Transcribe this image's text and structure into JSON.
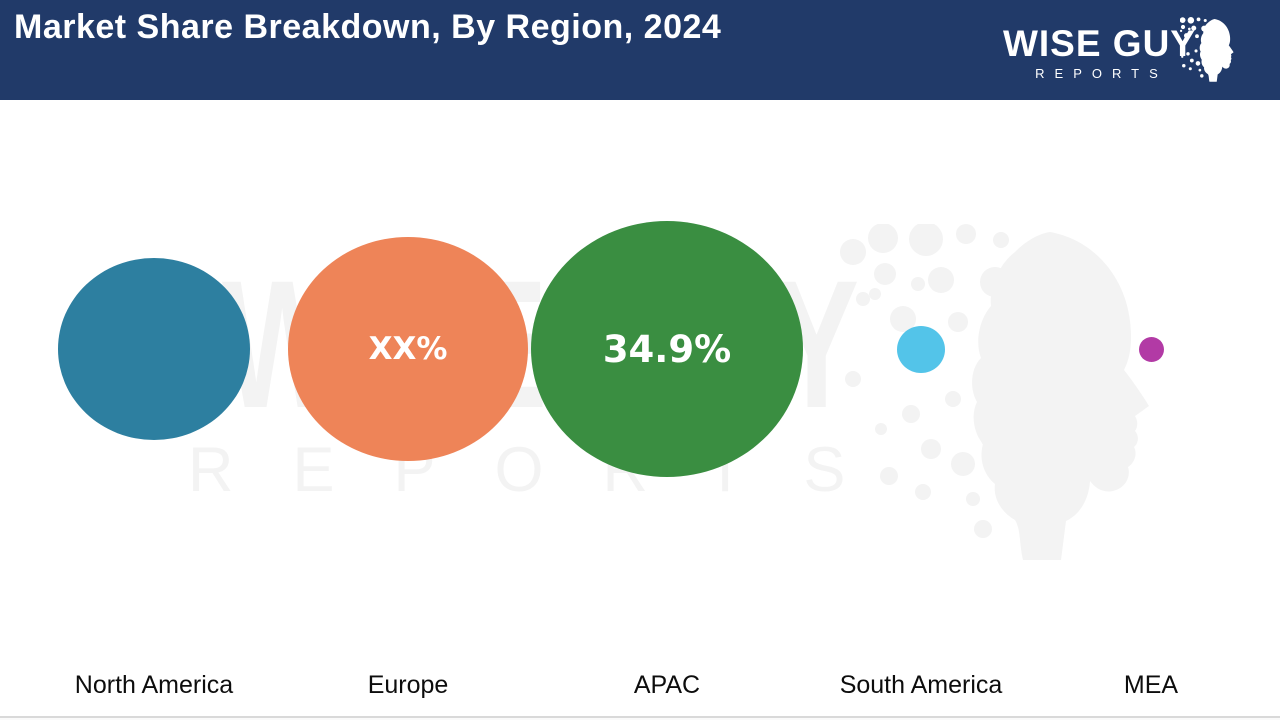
{
  "header": {
    "title": "Market Share Breakdown, By Region, 2024",
    "bg_color": "#213a69",
    "logo": {
      "name": "WISE GUY",
      "subname": "REPORTS",
      "icon": "head-profile-dots-icon",
      "color": "#ffffff"
    }
  },
  "watermark": {
    "text1": "WISE GUY",
    "text2": "REPORTS",
    "icon": "head-profile-dots-watermark",
    "color": "#f3f3f3"
  },
  "chart_data": {
    "type": "bubble",
    "title": "Market Share Breakdown, By Region, 2024",
    "categories": [
      "North America",
      "Europe",
      "APAC",
      "South America",
      "MEA"
    ],
    "series": [
      {
        "name": "Market Share",
        "values": [
          null,
          null,
          34.9,
          null,
          null
        ],
        "point_labels": [
          "",
          "XX%",
          "34.9%",
          "",
          ""
        ]
      }
    ],
    "colors": [
      "#2d7fa0",
      "#ee8458",
      "#3a8e41",
      "#53c4e9",
      "#b23aa5"
    ],
    "legend": "none",
    "grid": false,
    "layout": {
      "cx": [
        154,
        408,
        667,
        921,
        1151
      ],
      "cy": 349,
      "w": [
        192,
        240,
        272,
        48,
        25
      ],
      "h": [
        182,
        224,
        256,
        47,
        25
      ],
      "label_y": 671
    }
  },
  "footer": {
    "divider_color": "#d9d9d9"
  }
}
